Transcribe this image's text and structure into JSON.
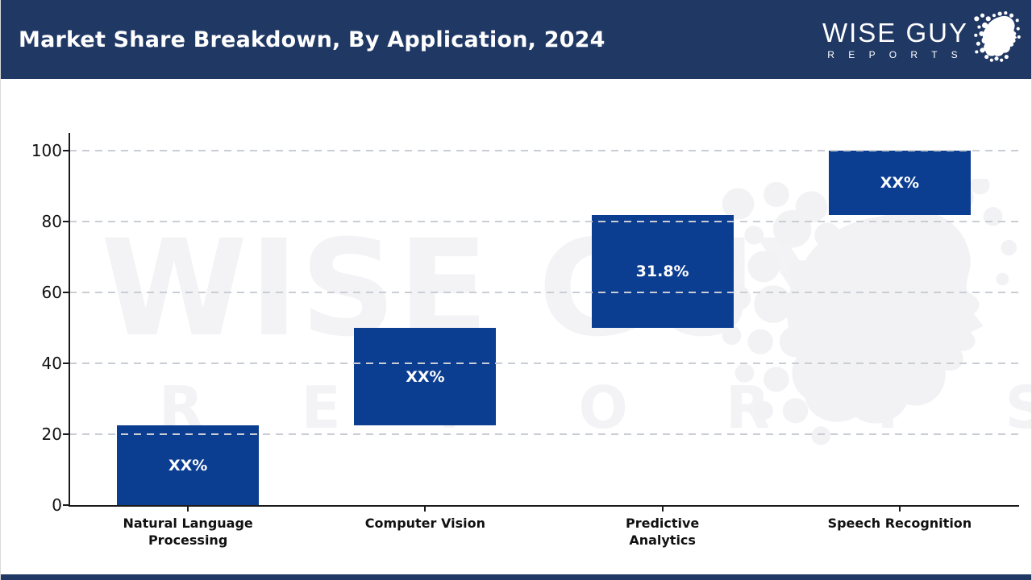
{
  "header": {
    "title": "Market Share Breakdown, By Application, 2024",
    "logo": {
      "name": "WISE GUY",
      "sub": "R E P O R T S"
    }
  },
  "watermark": {
    "name": "WISE GUY",
    "sub": "R E P O R T S"
  },
  "chart_data": {
    "type": "bar",
    "subtype": "waterfall-floating-segments",
    "title": "Market Share Breakdown, By Application, 2024",
    "categories": [
      [
        "Natural Language",
        "Processing"
      ],
      [
        "Computer Vision"
      ],
      [
        "Predictive",
        "Analytics"
      ],
      [
        "Speech Recognition"
      ]
    ],
    "segments": [
      {
        "category": "Natural Language Processing",
        "start": 0,
        "end": 22.5,
        "label": "XX%"
      },
      {
        "category": "Computer Vision",
        "start": 22.5,
        "end": 50,
        "label": "XX%"
      },
      {
        "category": "Predictive Analytics",
        "start": 50,
        "end": 81.8,
        "label": "31.8%"
      },
      {
        "category": "Speech Recognition",
        "start": 81.8,
        "end": 100,
        "label": "XX%"
      }
    ],
    "ylim": [
      0,
      100
    ],
    "yticks": [
      0,
      20,
      40,
      60,
      80,
      100
    ],
    "xlabel": "",
    "ylabel": "",
    "grid": "horizontal-dashed-over-bars",
    "legend": "none"
  },
  "colors": {
    "header_bg": "#203864",
    "footer_bg": "#203864",
    "bar": "#0b3d91",
    "grid": "#c9cdd4",
    "axis": "#1a1a1a",
    "watermark": "#f2f2f5"
  }
}
